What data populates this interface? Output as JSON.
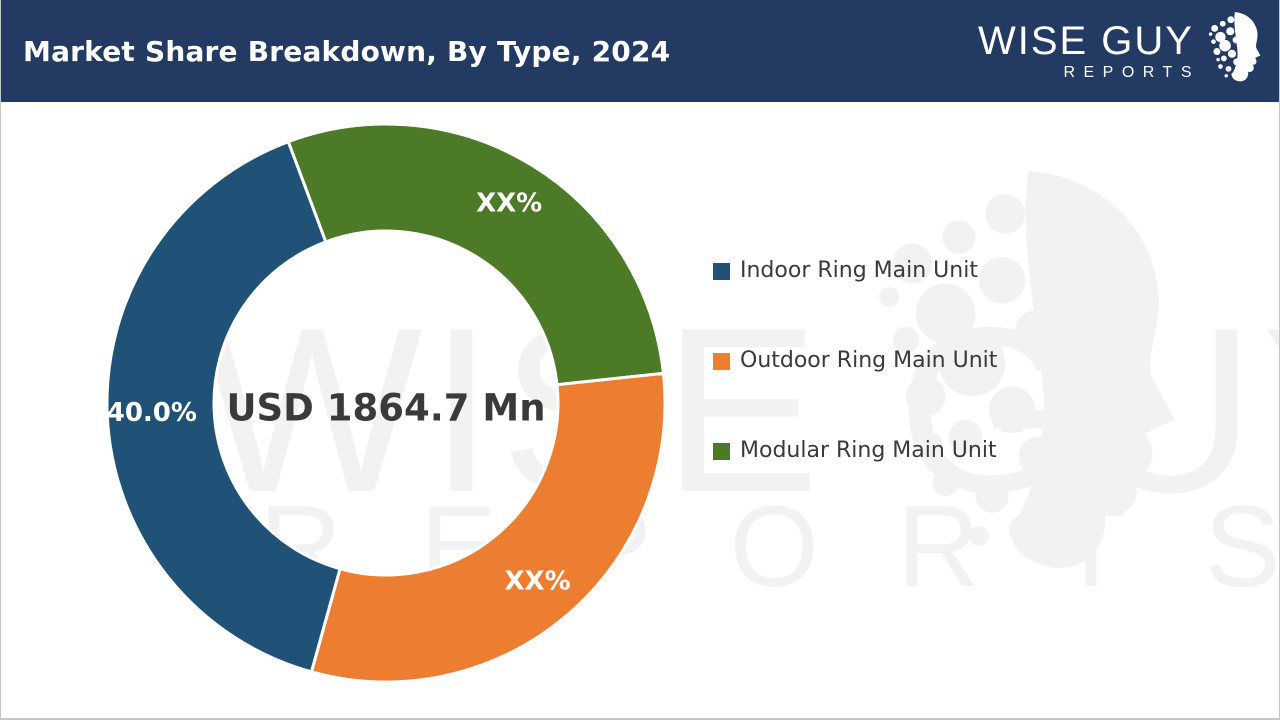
{
  "header": {
    "title": "Market Share Breakdown, By Type, 2024",
    "logo": {
      "line1": "WISE GUY",
      "line2": "REPORTS"
    }
  },
  "watermark": {
    "line1": "WISE GUY",
    "line2": "REPORTS"
  },
  "legend": {
    "items": [
      {
        "label": "Indoor Ring Main Unit",
        "color": "#205278"
      },
      {
        "label": "Outdoor Ring Main Unit",
        "color": "#ED7D31"
      },
      {
        "label": "Modular Ring Main Unit",
        "color": "#4C7A26"
      }
    ]
  },
  "chart_data": {
    "type": "pie",
    "subtype": "donut",
    "title": "Market Share Breakdown, By Type, 2024",
    "center_label": "USD 1864.7 Mn",
    "rotation": "clockwise-from-top",
    "start_angle_deg": 339.5,
    "legend_position": "right",
    "slices": [
      {
        "label": "Modular Ring Main Unit",
        "value": 29.0,
        "display_label": "XX%",
        "color": "#4C7A26"
      },
      {
        "label": "Outdoor Ring Main Unit",
        "value": 31.0,
        "display_label": "XX%",
        "color": "#ED7D31"
      },
      {
        "label": "Indoor Ring Main Unit",
        "value": 40.0,
        "display_label": "40.0%",
        "color": "#205278"
      }
    ]
  },
  "colors": {
    "header_bg": "#233A63",
    "header_text": "#FFFFFF",
    "content_bg": "#FFFFFF",
    "border": "#C8C8C8",
    "watermark": "#F2F2F3",
    "center_text": "#3A3A3A",
    "legend_text": "#3A3A3A",
    "slice_label_text": "#FFFFFF",
    "slice_separator": "#FFFFFF"
  }
}
